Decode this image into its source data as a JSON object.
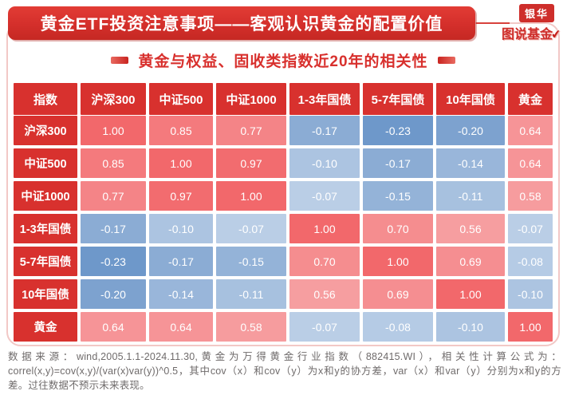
{
  "header": {
    "title": "黄金ETF投资注意事项——客观认识黄金的配置价值",
    "logo_top": "银华",
    "logo_bottom": "图说基金",
    "logo_check": "✔"
  },
  "subtitle": "黄金与权益、固收类指数近20年的相关性",
  "chart_data": {
    "type": "heatmap",
    "title": "黄金与权益、固收类指数近20年的相关性",
    "corner_label": "指数",
    "categories": [
      "沪深300",
      "中证500",
      "中证1000",
      "1-3年国债",
      "5-7年国债",
      "10年国债",
      "黄金"
    ],
    "matrix": [
      [
        1.0,
        0.85,
        0.77,
        -0.17,
        -0.23,
        -0.2,
        0.64
      ],
      [
        0.85,
        1.0,
        0.97,
        -0.1,
        -0.17,
        -0.14,
        0.64
      ],
      [
        0.77,
        0.97,
        1.0,
        -0.07,
        -0.15,
        -0.11,
        0.58
      ],
      [
        -0.17,
        -0.1,
        -0.07,
        1.0,
        0.7,
        0.56,
        -0.07
      ],
      [
        -0.23,
        -0.17,
        -0.15,
        0.7,
        1.0,
        0.69,
        -0.08
      ],
      [
        -0.2,
        -0.14,
        -0.11,
        0.56,
        0.69,
        1.0,
        -0.1
      ],
      [
        0.64,
        0.64,
        0.58,
        -0.07,
        -0.08,
        -0.1,
        1.0
      ]
    ],
    "value_range": [
      -1,
      1
    ],
    "legend_position": "none",
    "color_scale": {
      "positive_low": "#fce3e4",
      "positive_high": "#f2686b",
      "negative_low": "#dbe6f3",
      "negative_high": "#6591c6",
      "negative_domain": 0.25,
      "header_red": "#d8312e"
    }
  },
  "footer": {
    "text": "数据来源：wind,2005.1.1-2024.11.30,黄金为万得黄金行业指数（882415.WI），相关性计算公式为：correl(x,y)=cov(x,y)/(var(x)var(y))^0.5，其中cov（x）和cov（y）为x和y的协方差，var（x）和var（y）分别为x和y的方差。过往数据不预示未来表现。"
  },
  "colors": {
    "banner_red": "#d42f2b",
    "accent_red": "#d8302d",
    "card_border": "#f2c8c6",
    "footer_gray": "#6f6b6b"
  }
}
